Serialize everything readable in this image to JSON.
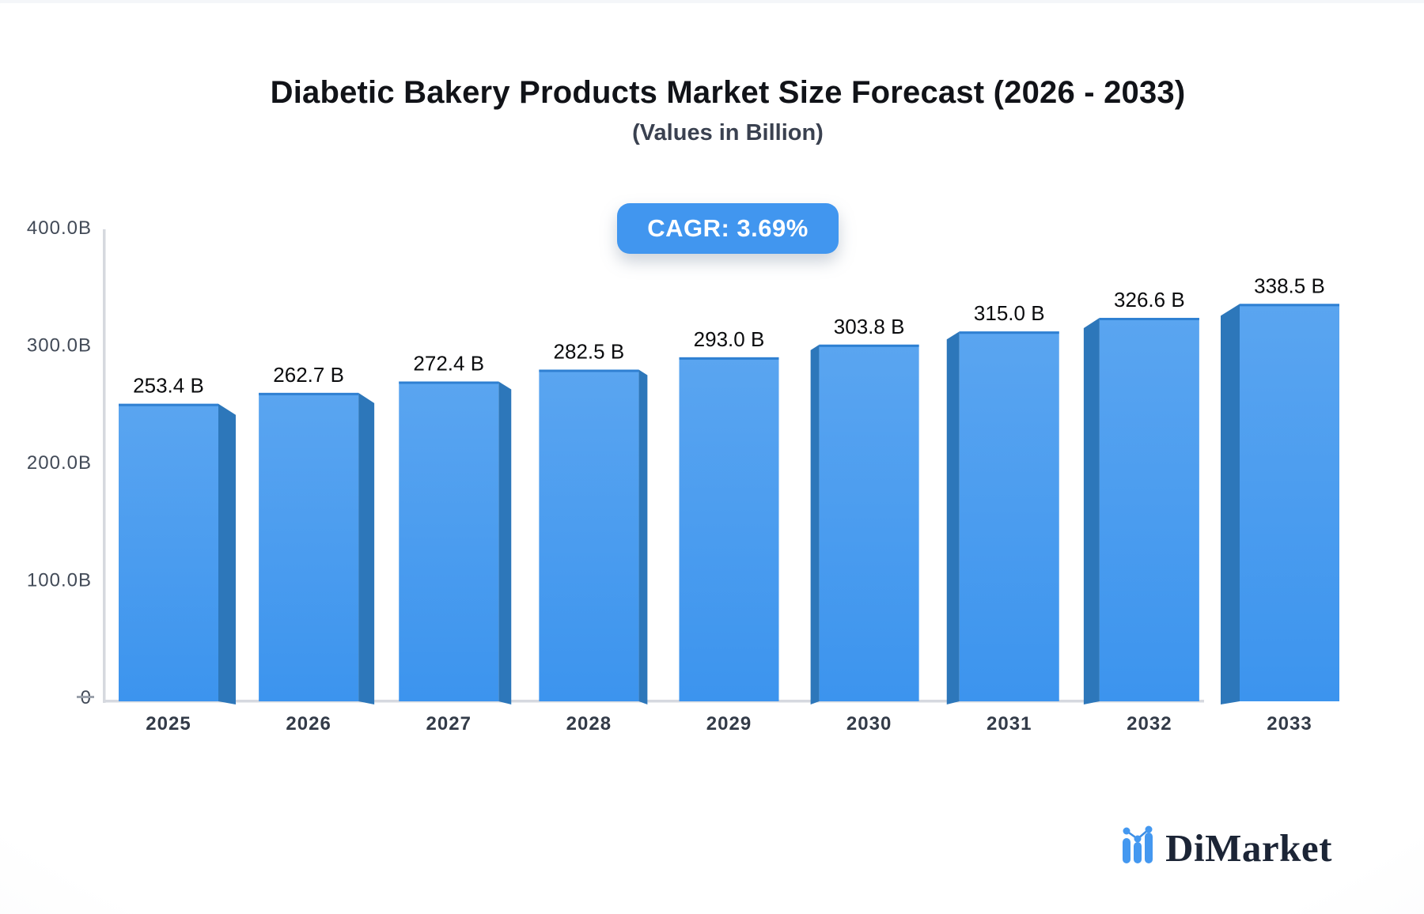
{
  "header": {
    "title": "Diabetic Bakery Products Market Size Forecast (2026 - 2033)",
    "subtitle": "(Values in Billion)",
    "cagr_label": "CAGR: 3.69%"
  },
  "chart_data": {
    "type": "bar",
    "title": "Diabetic Bakery Products Market Size Forecast (2026 - 2033)",
    "subtitle": "(Values in Billion)",
    "cagr": "3.69%",
    "unit": "Billion",
    "categories": [
      "2025",
      "2026",
      "2027",
      "2028",
      "2029",
      "2030",
      "2031",
      "2032",
      "2033"
    ],
    "values": [
      253.4,
      262.7,
      272.4,
      282.5,
      293.0,
      303.8,
      315.0,
      326.6,
      338.5
    ],
    "value_labels": [
      "253.4 B",
      "262.7 B",
      "272.4 B",
      "282.5 B",
      "293.0 B",
      "303.8 B",
      "315.0 B",
      "326.6 B",
      "338.5 B"
    ],
    "xlabel": "",
    "ylabel": "",
    "ylim": [
      0,
      400
    ],
    "yticks": [
      {
        "value": 400,
        "label": "400.0B"
      },
      {
        "value": 300,
        "label": "300.0B"
      },
      {
        "value": 200,
        "label": "200.0B"
      },
      {
        "value": 100,
        "label": "100.0B"
      },
      {
        "value": 0,
        "label": "0"
      }
    ],
    "grid": false,
    "legend": false,
    "colors": {
      "bar_front_top": "#5aa5f0",
      "bar_front_bottom": "#3c94ee",
      "bar_side": "#2d77ba",
      "bar_top_edge": "#2f80d2",
      "axis_line": "#d6d9df",
      "zero_dash": "#9ba1ab",
      "tick_label": "#424a57",
      "category_label": "#333b48",
      "value_label": "#0b0c0e",
      "badge_bg": "#4196ef",
      "badge_text": "#ffffff"
    }
  },
  "branding": {
    "logo_text": "DiMarket"
  }
}
